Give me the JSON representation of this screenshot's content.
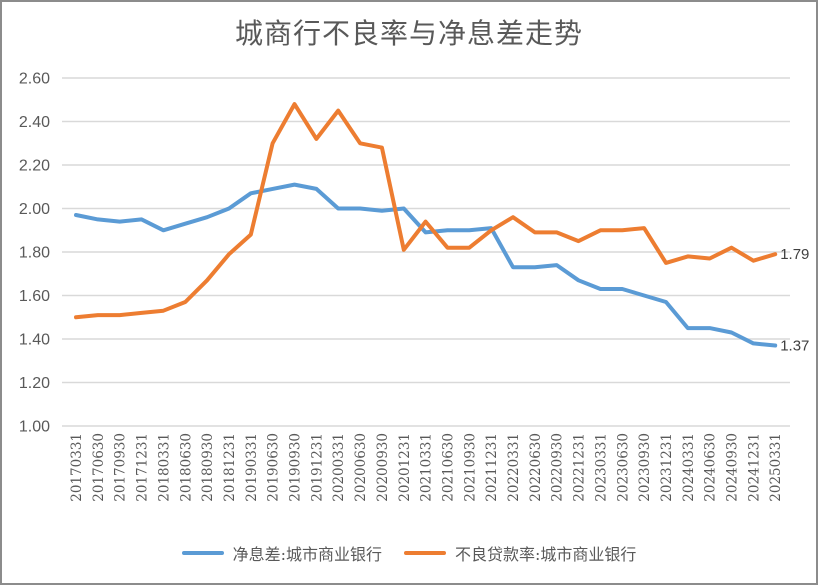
{
  "title": "城商行不良率与净息差走势",
  "colors": {
    "nim_line": "#5B9BD5",
    "npl_line": "#ED7D31",
    "gridline": "#D9D9D9",
    "axis_text": "#595959",
    "data_label_text": "#404040",
    "frame_border": "#8c8c8c",
    "background": "#ffffff"
  },
  "chart_data": {
    "type": "line",
    "title": "城商行不良率与净息差走势",
    "xlabel": "",
    "ylabel": "",
    "ylim": [
      1.0,
      2.6
    ],
    "ytick_step": 0.2,
    "yticks": [
      "2.60",
      "2.40",
      "2.20",
      "2.00",
      "1.80",
      "1.60",
      "1.40",
      "1.20",
      "1.00"
    ],
    "grid": true,
    "legend_position": "bottom",
    "categories": [
      "20170331",
      "20170630",
      "20170930",
      "20171231",
      "20180331",
      "20180630",
      "20180930",
      "20181231",
      "20190331",
      "20190630",
      "20190930",
      "20191231",
      "20200331",
      "20200630",
      "20200930",
      "20201231",
      "20210331",
      "20210630",
      "20210930",
      "20211231",
      "20220331",
      "20220630",
      "20220930",
      "20221231",
      "20230331",
      "20230630",
      "20230930",
      "20231231",
      "20240331",
      "20240630",
      "20240930",
      "20241231",
      "20250331"
    ],
    "series": [
      {
        "name": "净息差:城市商业银行",
        "color": "#5B9BD5",
        "end_label": "1.37",
        "values": [
          1.97,
          1.95,
          1.94,
          1.95,
          1.9,
          1.93,
          1.96,
          2.0,
          2.07,
          2.09,
          2.11,
          2.09,
          2.0,
          2.0,
          1.99,
          2.0,
          1.89,
          1.9,
          1.9,
          1.91,
          1.73,
          1.73,
          1.74,
          1.67,
          1.63,
          1.63,
          1.6,
          1.57,
          1.45,
          1.45,
          1.43,
          1.38,
          1.37
        ]
      },
      {
        "name": "不良贷款率:城市商业银行",
        "color": "#ED7D31",
        "end_label": "1.79",
        "values": [
          1.5,
          1.51,
          1.51,
          1.52,
          1.53,
          1.57,
          1.67,
          1.79,
          1.88,
          2.3,
          2.48,
          2.32,
          2.45,
          2.3,
          2.28,
          1.81,
          1.94,
          1.82,
          1.82,
          1.9,
          1.96,
          1.89,
          1.89,
          1.85,
          1.9,
          1.9,
          1.91,
          1.75,
          1.78,
          1.77,
          1.82,
          1.76,
          1.79
        ]
      }
    ]
  },
  "legend": {
    "items": [
      {
        "label": "净息差:城市商业银行"
      },
      {
        "label": "不良贷款率:城市商业银行"
      }
    ]
  }
}
